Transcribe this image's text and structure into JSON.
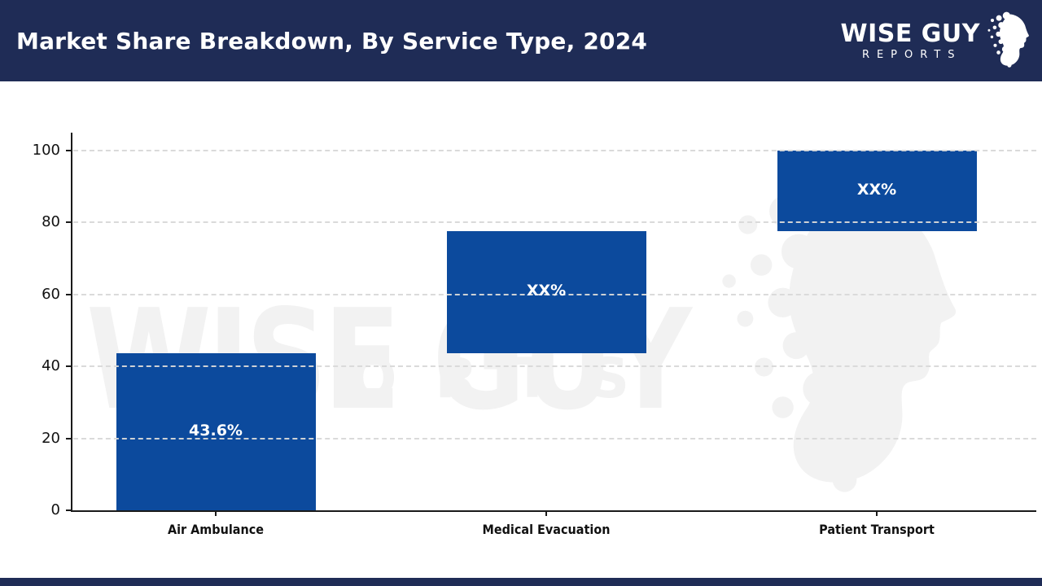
{
  "header": {
    "title": "Market Share Breakdown, By Service Type, 2024",
    "brand": {
      "name": "WISE GUY",
      "sub": "REPORTS"
    }
  },
  "watermark": {
    "line1": "WISE GUY",
    "line2": "REPORTS"
  },
  "chart_data": {
    "type": "bar",
    "subtype": "waterfall-floating-bars",
    "title": "Market Share Breakdown, By Service Type, 2024",
    "categories": [
      "Air Ambulance",
      "Medical Evacuation",
      "Patient Transport"
    ],
    "bars": [
      {
        "category": "Air Ambulance",
        "start": 0,
        "end": 43.6,
        "label": "43.6%"
      },
      {
        "category": "Medical Evacuation",
        "start": 43.6,
        "end": 77.5,
        "label": "XX%"
      },
      {
        "category": "Patient Transport",
        "start": 77.5,
        "end": 100,
        "label": "XX%"
      }
    ],
    "xlabel": "",
    "ylabel": "",
    "ylim": [
      0,
      100
    ],
    "yticks": [
      0,
      20,
      40,
      60,
      80,
      100
    ],
    "grid": "horizontal-dashed",
    "legend": "none"
  },
  "colors": {
    "header_bg": "#1f2c56",
    "footer_bg": "#1f2c56",
    "bar": "#0c4a9d",
    "bar_label": "#ffffff",
    "grid": "#d9d9d9",
    "axis": "#1a1a1a",
    "watermark": "#f2f2f2"
  }
}
